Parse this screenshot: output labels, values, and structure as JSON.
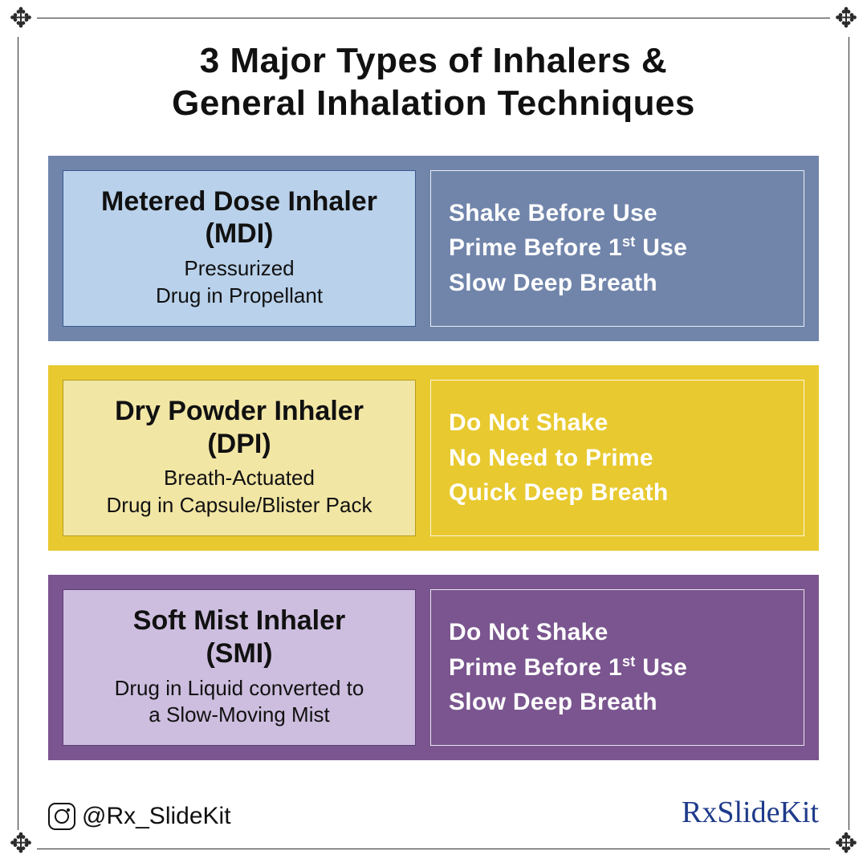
{
  "title_line1": "3 Major Types of Inhalers &",
  "title_line2": "General Inhalation Techniques",
  "corner_glyph": "✥",
  "colors": {
    "blue_bg": "#7185ab",
    "blue_light": "#b9d1ea",
    "blue_border": "#3b5a8c",
    "yellow_bg": "#e8c92f",
    "yellow_light": "#f2e6a5",
    "yellow_border": "#b89b1f",
    "purple_bg": "#7a558f",
    "purple_light": "#cdbedf",
    "purple_border": "#5c3f78",
    "link_color": "#1e3a8a"
  },
  "cards": [
    {
      "name_line1": "Metered Dose Inhaler",
      "name_line2": "(MDI)",
      "sub_line1": "Pressurized",
      "sub_line2": "Drug in Propellant",
      "tips": [
        "Shake Before Use",
        "Prime Before 1<sup>st</sup> Use",
        "Slow Deep Breath"
      ]
    },
    {
      "name_line1": "Dry Powder Inhaler",
      "name_line2": "(DPI)",
      "sub_line1": "Breath-Actuated",
      "sub_line2": "Drug in Capsule/Blister Pack",
      "tips": [
        "Do Not Shake",
        "No Need to Prime",
        "Quick Deep Breath"
      ]
    },
    {
      "name_line1": "Soft Mist Inhaler",
      "name_line2": "(SMI)",
      "sub_line1": "Drug in Liquid converted to",
      "sub_line2": "a Slow-Moving Mist",
      "tips": [
        "Do Not Shake",
        "Prime Before 1<sup>st</sup> Use",
        "Slow Deep Breath"
      ]
    }
  ],
  "footer": {
    "handle": "@Rx_SlideKit",
    "brand": "RxSlideKit"
  }
}
